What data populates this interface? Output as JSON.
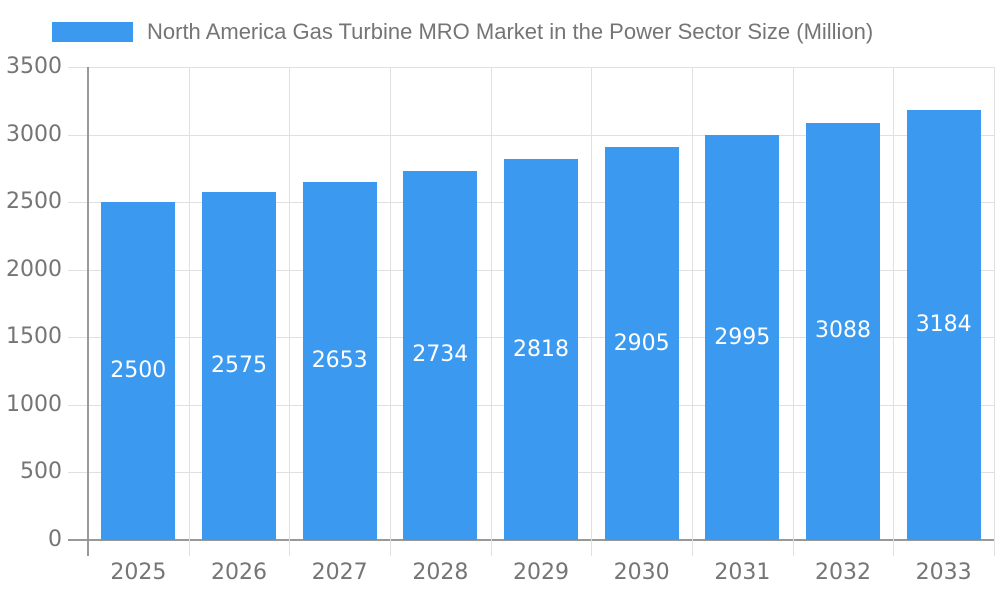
{
  "legend": {
    "label": "North America Gas Turbine MRO Market in the Power Sector Size (Million)"
  },
  "chart_data": {
    "type": "bar",
    "title": "North America Gas Turbine MRO Market in the Power Sector Size (Million)",
    "categories": [
      "2025",
      "2026",
      "2027",
      "2028",
      "2029",
      "2030",
      "2031",
      "2032",
      "2033"
    ],
    "values": [
      2500,
      2575,
      2653,
      2734,
      2818,
      2905,
      2995,
      3088,
      3184
    ],
    "xlabel": "",
    "ylabel": "",
    "ylim": [
      0,
      3500
    ],
    "ytick_step": 500,
    "yticks": [
      0,
      500,
      1000,
      1500,
      2000,
      2500,
      3000,
      3500
    ],
    "grid": true,
    "legend_position": "top-left",
    "bar_labels_inside": true,
    "colors": {
      "bar": "#3B99F0",
      "bar_label": "#FFFFFF",
      "axis_line": "#999999",
      "gridline": "#E0E0E0",
      "tick_text": "#757575",
      "legend_text": "#757575",
      "background": "#FFFFFF"
    }
  }
}
